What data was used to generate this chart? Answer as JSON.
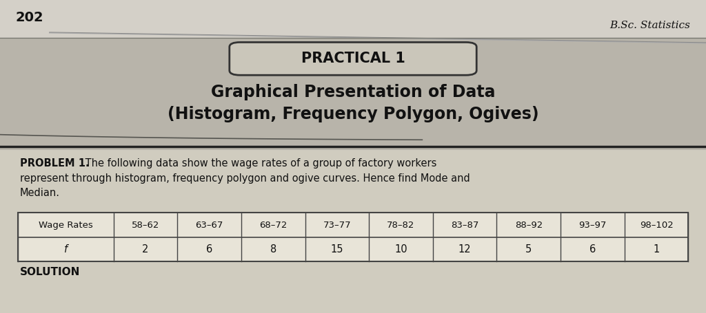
{
  "page_number": "202",
  "top_right_text": "B.Sc. Statistics",
  "box_title": "PRACTICAL 1",
  "main_title_line1": "Graphical Presentation of Data",
  "main_title_line2": "(Histogram, Frequency Polygon, Ogives)",
  "problem_bold": "PROBLEM 1.",
  "problem_line1_rest": " The following data show the wage rates of a group of factory workers",
  "problem_line2": "represent through histogram, frequency polygon and ogive curves. Hence find Mode and",
  "problem_line3": "Median.",
  "table_header": [
    "Wage Rates",
    "58–62",
    "63–67",
    "68–72",
    "73–77",
    "78–82",
    "83–87",
    "88–92",
    "93–97",
    "98–102"
  ],
  "table_row_label": "f",
  "table_values": [
    2,
    6,
    8,
    15,
    10,
    12,
    5,
    6,
    1
  ],
  "solution_label": "SOLUTION",
  "color_page_bg": "#ccc8bc",
  "color_header_bg": "#d4d0c8",
  "color_banner_bg": "#b8b4aa",
  "color_content_bg": "#d0ccbf",
  "color_table_bg": "#e8e4d8",
  "color_line": "#444444",
  "color_text": "#111111"
}
